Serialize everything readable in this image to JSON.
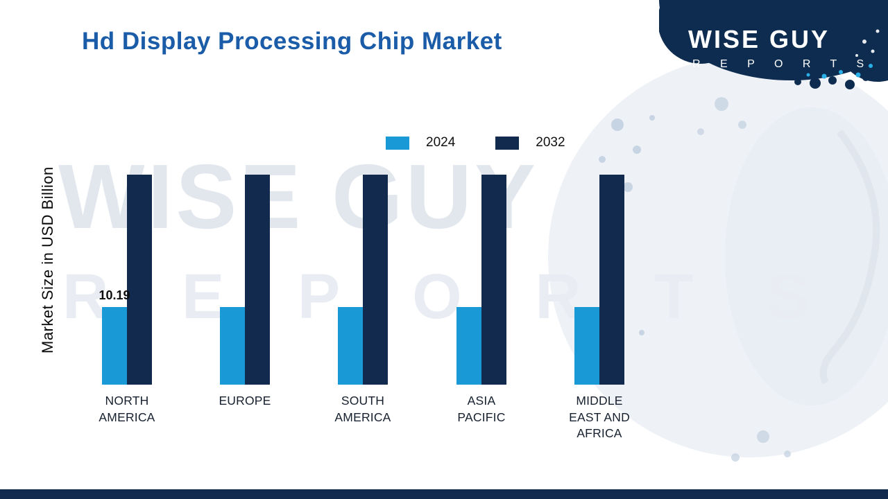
{
  "page": {
    "title": "Hd Display Processing Chip Market",
    "ylabel": "Market Size in USD Billion"
  },
  "logo": {
    "line1": "WISE GUY",
    "line2": "R E P O R T S"
  },
  "watermark": {
    "line1": "WISE GUY",
    "line2": "R E P O R T S"
  },
  "legend": [
    {
      "label": "2024",
      "color": "#199ad6"
    },
    {
      "label": "2032",
      "color": "#122a4e"
    }
  ],
  "chart_data": {
    "type": "bar",
    "title": "Hd Display Processing Chip Market",
    "xlabel": "",
    "ylabel": "Market Size in USD Billion",
    "categories": [
      "NORTH AMERICA",
      "EUROPE",
      "SOUTH AMERICA",
      "ASIA PACIFIC",
      "MIDDLE EAST AND AFRICA"
    ],
    "series": [
      {
        "name": "2024",
        "color": "#199ad6",
        "values": [
          10.19,
          10.19,
          10.19,
          10.19,
          10.19
        ]
      },
      {
        "name": "2032",
        "color": "#122a4e",
        "values": [
          27.6,
          27.6,
          27.6,
          27.6,
          27.6
        ]
      }
    ],
    "data_label": {
      "text": "10.19",
      "category_index": 0,
      "series_index": 0
    },
    "ylim": [
      0,
      28.7
    ],
    "grid": false,
    "legend_position": "top"
  },
  "colors": {
    "title": "#1a5ca8",
    "bar_2024": "#199ad6",
    "bar_2032": "#122a4e",
    "footer": "#122a4e",
    "logo_bg": "#0e2c50",
    "logo_dot": "#29aee6"
  }
}
